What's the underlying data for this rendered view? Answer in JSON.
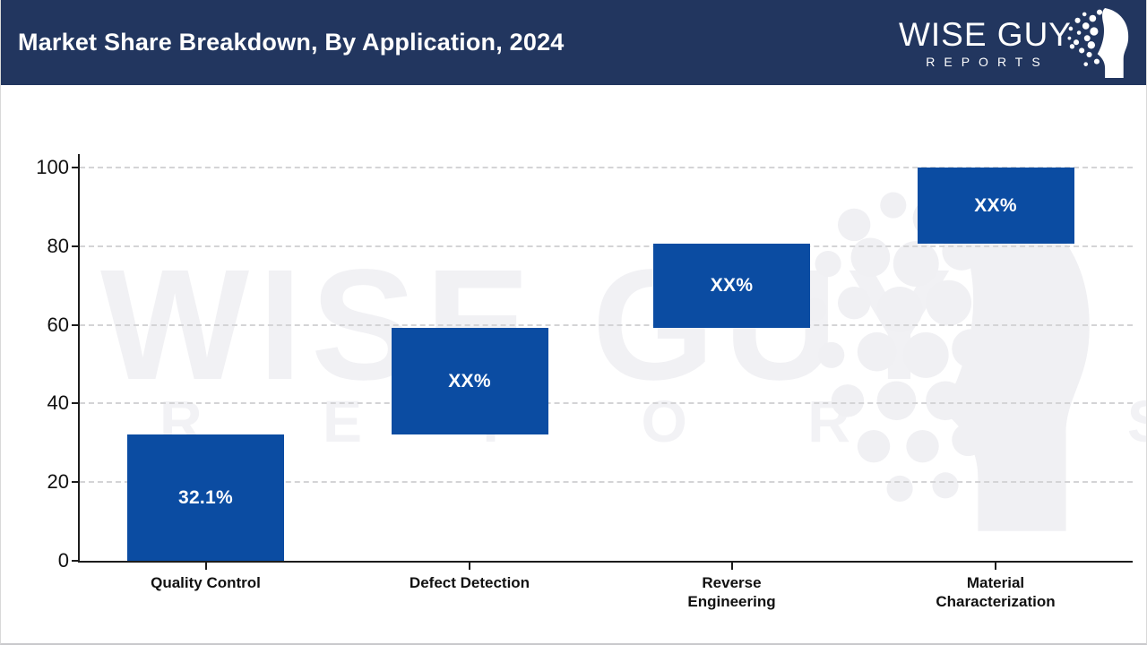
{
  "header": {
    "title": "Market Share Breakdown, By Application, 2024",
    "logo": {
      "line1": "WISE GUY",
      "line2": "REPORTS"
    }
  },
  "watermark": {
    "line1": "WISE GUY",
    "line2": "R E P O R T S"
  },
  "colors": {
    "header_bg": "#22365f",
    "bar_blue": "#0b4ca2",
    "grid_gray": "#d4d4d6",
    "axis_black": "#1c1c1c",
    "bar_label_white": "#ffffff",
    "watermark_gray": "#f1f1f4"
  },
  "chart_data": {
    "type": "bar",
    "subtype": "waterfall",
    "title": "Market Share Breakdown, By Application, 2024",
    "categories": [
      "Quality Control",
      "Defect Detection",
      "Reverse Engineering",
      "Material Characterization"
    ],
    "category_display": [
      "Quality Control",
      "Defect Detection",
      "Reverse\nEngineering",
      "Material\nCharacterization"
    ],
    "segments": [
      [
        0,
        32.1
      ],
      [
        32.1,
        59.2
      ],
      [
        59.2,
        80.6
      ],
      [
        80.6,
        100
      ]
    ],
    "bar_labels": [
      "32.1%",
      "XX%",
      "XX%",
      "XX%"
    ],
    "ylim": [
      0,
      100
    ],
    "yticks": [
      0,
      20,
      40,
      60,
      80,
      100
    ],
    "grid": "horizontal-dashed",
    "legend": "none",
    "xlabel": "",
    "ylabel": ""
  }
}
